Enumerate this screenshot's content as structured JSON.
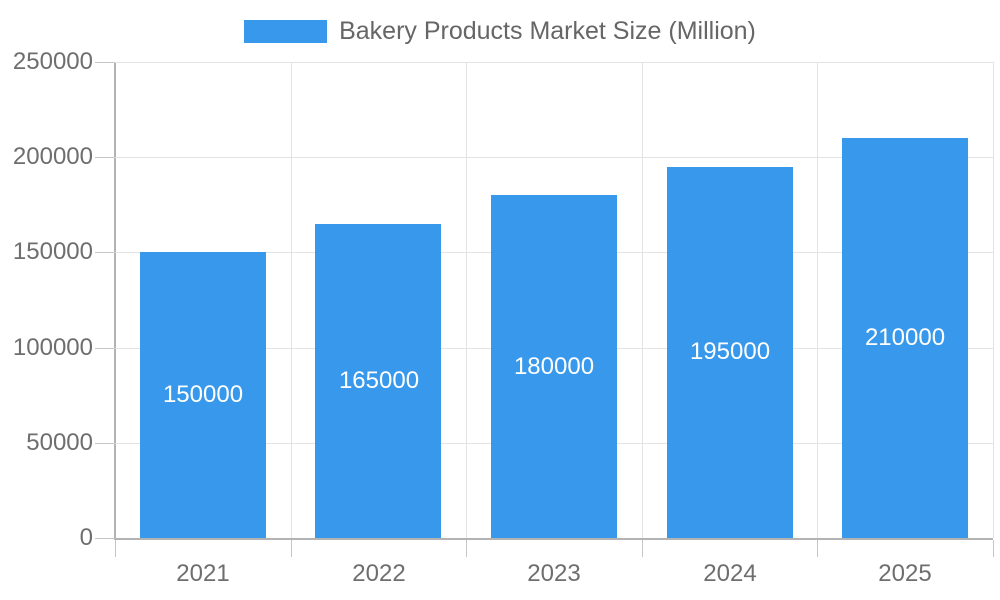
{
  "chart_data": {
    "type": "bar",
    "title": "Bakery Products Market Size (Million)",
    "categories": [
      "2021",
      "2022",
      "2023",
      "2024",
      "2025"
    ],
    "values": [
      150000,
      165000,
      180000,
      195000,
      210000
    ],
    "value_labels": [
      "150000",
      "165000",
      "180000",
      "195000",
      "210000"
    ],
    "xlabel": "",
    "ylabel": "",
    "ylim": [
      0,
      250000
    ],
    "yticks": [
      0,
      50000,
      100000,
      150000,
      200000,
      250000
    ],
    "grid": true,
    "legend_position": "top",
    "legend_entries": [
      "Bakery Products Market Size (Million)"
    ]
  },
  "colors": {
    "bar": "#3899EC",
    "value_label": "#FFFFFF",
    "tick_text": "#6E6E6E",
    "legend_text": "#666666",
    "gridline": "#E3E3E3",
    "axis": "#B3B3B3",
    "background": "#FFFFFF"
  }
}
